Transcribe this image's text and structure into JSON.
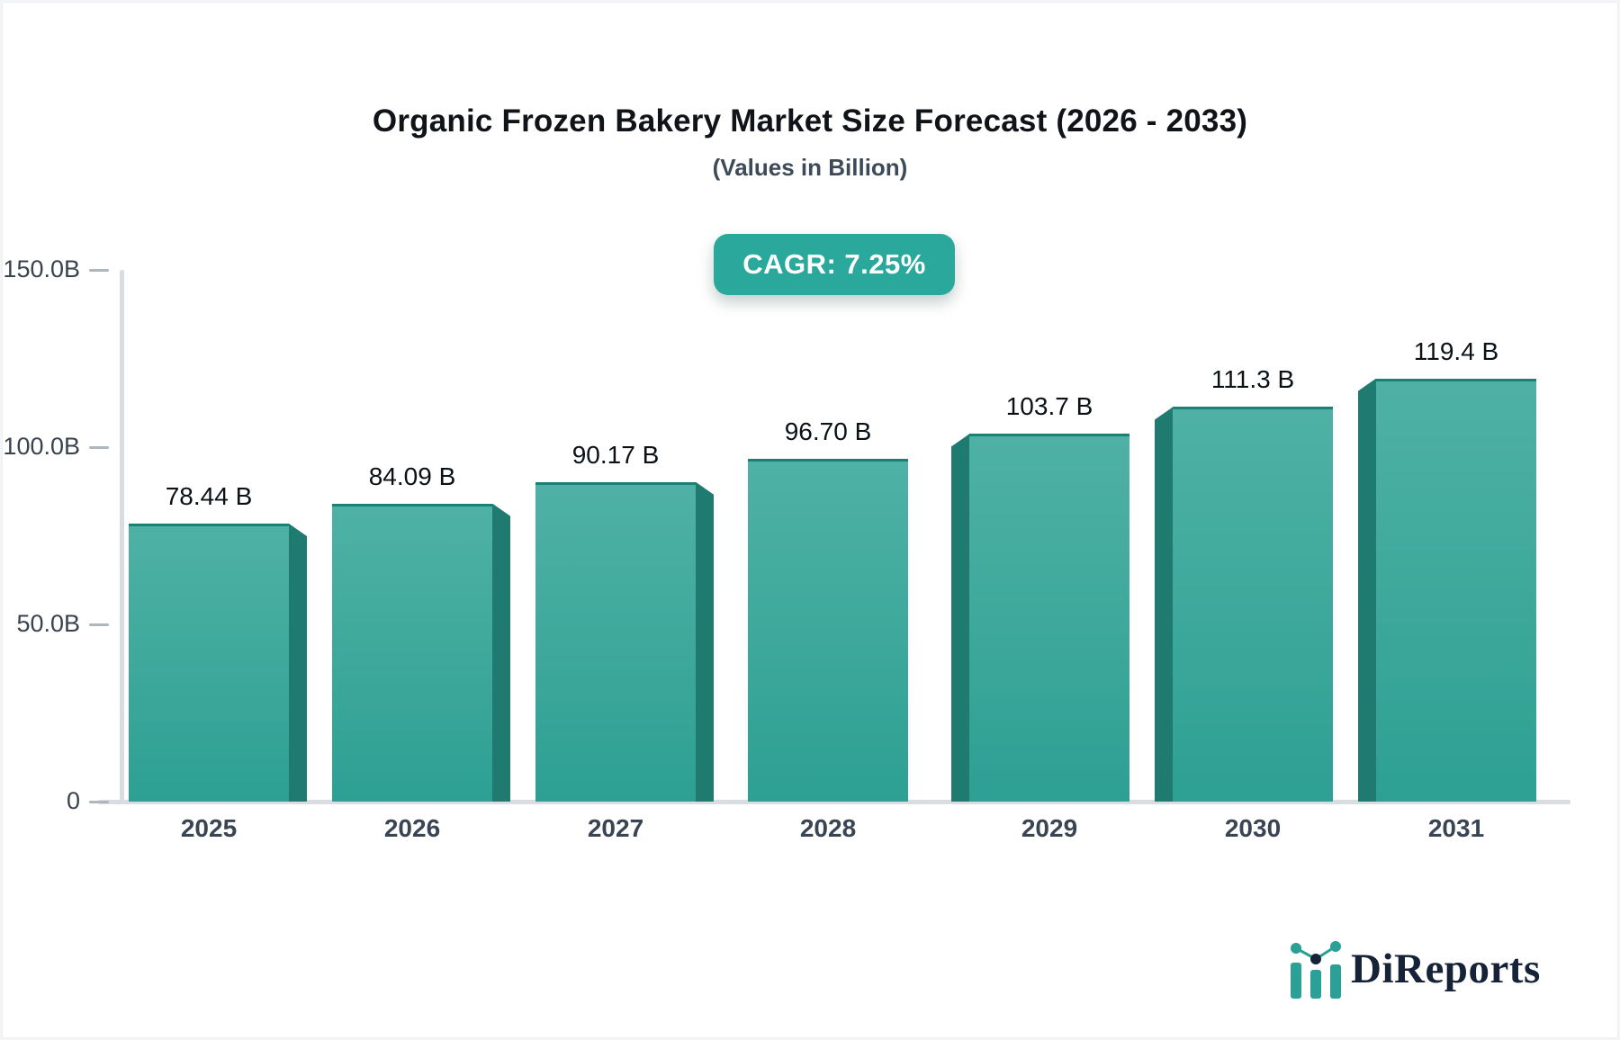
{
  "header": {
    "title": "Organic Frozen Bakery Market Size Forecast (2026 - 2033)",
    "subtitle": "(Values in Billion)",
    "cagr_badge": "CAGR: 7.25%"
  },
  "chart_data": {
    "type": "bar",
    "title": "Organic Frozen Bakery Market Size Forecast (2026 - 2033)",
    "subtitle": "(Values in Billion)",
    "categories": [
      "2025",
      "2026",
      "2027",
      "2028",
      "2029",
      "2030",
      "2031"
    ],
    "values": [
      78.44,
      84.09,
      90.17,
      96.7,
      103.7,
      111.3,
      119.4
    ],
    "value_labels": [
      "78.44 B",
      "84.09 B",
      "90.17 B",
      "96.70 B",
      "103.7 B",
      "111.3 B",
      "119.4 B"
    ],
    "cagr": "7.25%",
    "ylim": [
      0,
      150
    ],
    "ytick_labels": [
      "150.0B",
      "100.0B",
      "50.0B",
      "0"
    ],
    "ytick_values": [
      150,
      100,
      50,
      0
    ],
    "grid": false,
    "legend": false,
    "bar_style": "pseudo-3d, side bevel faces toward center bar"
  },
  "branding": {
    "logo_text": "DiReports",
    "logo_icon": "mini-bar-chart-icon"
  },
  "colors": {
    "bar_top": "#4fb1a5",
    "bar_bottom": "#2da093",
    "bar_side": "#1f7a6f",
    "bar_edge": "#1a8175",
    "badge_bg": "#2aa89b",
    "badge_text": "#ffffff",
    "axis_line": "#d9dce1",
    "tick": "#aeb6bf",
    "axis_text": "#39434f",
    "title_text": "#101418",
    "subtitle_text": "#3d4a58",
    "value_text": "#0c1116",
    "logo_text": "#152238",
    "logo_teal": "#2aa096",
    "logo_navy": "#152238"
  }
}
